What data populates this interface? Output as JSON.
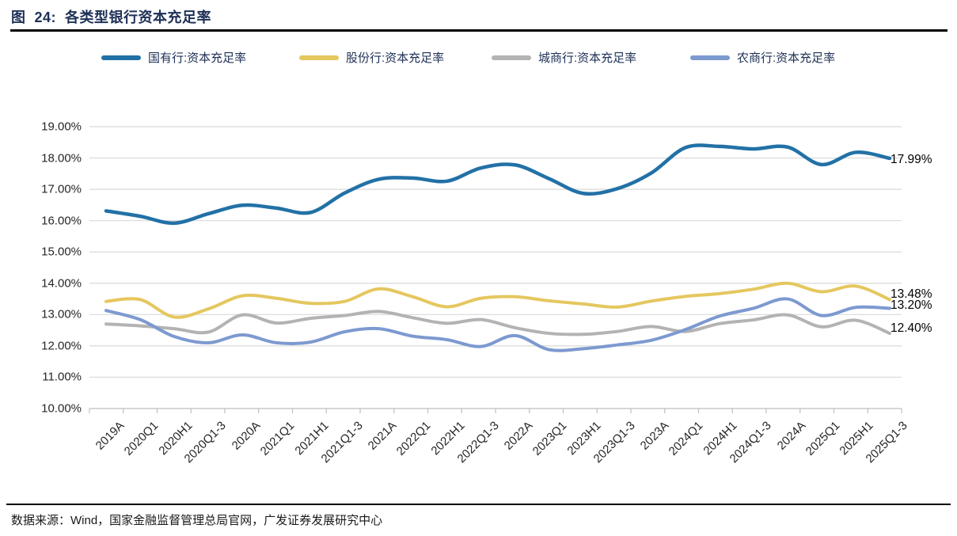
{
  "page": {
    "title": "图  24:  各类型银行资本充足率"
  },
  "chart_data": {
    "type": "line",
    "title": "各类型银行资本充足率",
    "categories": [
      "2019A",
      "2020Q1",
      "2020H1",
      "2020Q1-3",
      "2020A",
      "2021Q1",
      "2021H1",
      "2021Q1-3",
      "2021A",
      "2022Q1",
      "2022H1",
      "2022Q1-3",
      "2022A",
      "2023Q1",
      "2023H1",
      "2023Q1-3",
      "2023A",
      "2024Q1",
      "2024H1",
      "2024Q1-3",
      "2024A",
      "2025Q1",
      "2025H1",
      "2025Q1-3"
    ],
    "series": [
      {
        "name": "国有行:资本充足率",
        "color": "#2271A6",
        "values": [
          16.31,
          16.14,
          15.92,
          16.22,
          16.49,
          16.4,
          16.26,
          16.88,
          17.32,
          17.36,
          17.26,
          17.68,
          17.78,
          17.34,
          16.87,
          17.02,
          17.52,
          18.33,
          18.37,
          18.29,
          18.35,
          17.79,
          18.18,
          17.99
        ]
      },
      {
        "name": "股份行:资本充足率",
        "color": "#E5C75F",
        "values": [
          13.42,
          13.48,
          12.92,
          13.18,
          13.6,
          13.52,
          13.36,
          13.42,
          13.82,
          13.57,
          13.25,
          13.52,
          13.57,
          13.44,
          13.34,
          13.24,
          13.43,
          13.58,
          13.67,
          13.81,
          14.0,
          13.73,
          13.91,
          13.48
        ]
      },
      {
        "name": "城商行:资本充足率",
        "color": "#B3B3B3",
        "values": [
          12.7,
          12.64,
          12.55,
          12.44,
          12.99,
          12.73,
          12.88,
          12.97,
          13.1,
          12.9,
          12.72,
          12.84,
          12.58,
          12.4,
          12.37,
          12.46,
          12.62,
          12.46,
          12.71,
          12.83,
          12.99,
          12.61,
          12.82,
          12.4
        ]
      },
      {
        "name": "农商行:资本充足率",
        "color": "#7D99D0",
        "values": [
          13.13,
          12.84,
          12.3,
          12.1,
          12.35,
          12.1,
          12.12,
          12.45,
          12.55,
          12.31,
          12.2,
          11.98,
          12.33,
          11.88,
          11.91,
          12.03,
          12.18,
          12.52,
          12.95,
          13.2,
          13.5,
          12.97,
          13.23,
          13.2
        ]
      }
    ],
    "ylim": [
      10,
      19
    ],
    "ytick_step": 1,
    "ytick_format": "0.00%",
    "xlabel": "",
    "ylabel": "",
    "grid": "horizontal",
    "legend_position": "top",
    "end_labels": [
      "17.99%",
      "13.48%",
      "13.20%",
      "12.40%"
    ]
  },
  "colors": {
    "grid": "#D9D9D9",
    "axis": "#BFBFBF",
    "title_text": "#1E3056",
    "rule": "#000000"
  },
  "footer": {
    "source": "数据来源：Wind，国家金融监督管理总局官网，广发证券发展研究中心"
  }
}
